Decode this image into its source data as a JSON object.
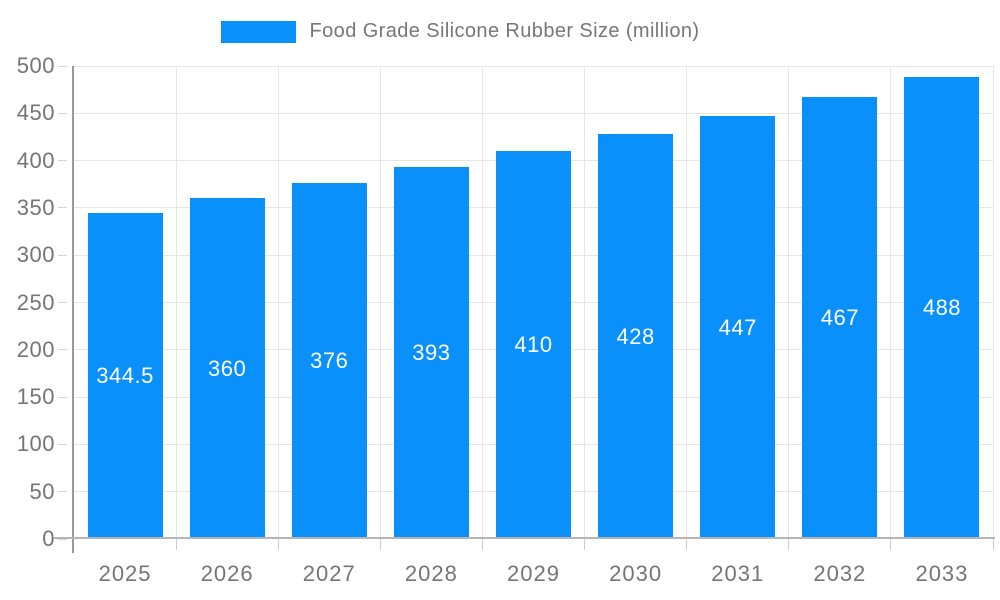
{
  "chart_data": {
    "type": "bar",
    "title": "Food Grade Silicone Rubber Size (million)",
    "categories": [
      "2025",
      "2026",
      "2027",
      "2028",
      "2029",
      "2030",
      "2031",
      "2032",
      "2033"
    ],
    "values": [
      344.5,
      360,
      376,
      393,
      410,
      428,
      447,
      467,
      488
    ],
    "bar_labels": [
      "344.5",
      "360",
      "376",
      "393",
      "410",
      "428",
      "447",
      "467",
      "488"
    ],
    "xlabel": "",
    "ylabel": "",
    "ylim": [
      0,
      500
    ],
    "ystep": 50,
    "ytick_labels": [
      "0",
      "50",
      "100",
      "150",
      "200",
      "250",
      "300",
      "350",
      "400",
      "450",
      "500"
    ],
    "grid": true,
    "legend_position": "top-center",
    "colors": {
      "bar": "#0a90fa",
      "bar_value_text": "#ffffff",
      "axis_text": "#757575",
      "legend_text": "#777777",
      "gridline": "#e6e6e6",
      "y_axis_line": "#999999",
      "x_axis_line": "#b5b5b5"
    }
  }
}
